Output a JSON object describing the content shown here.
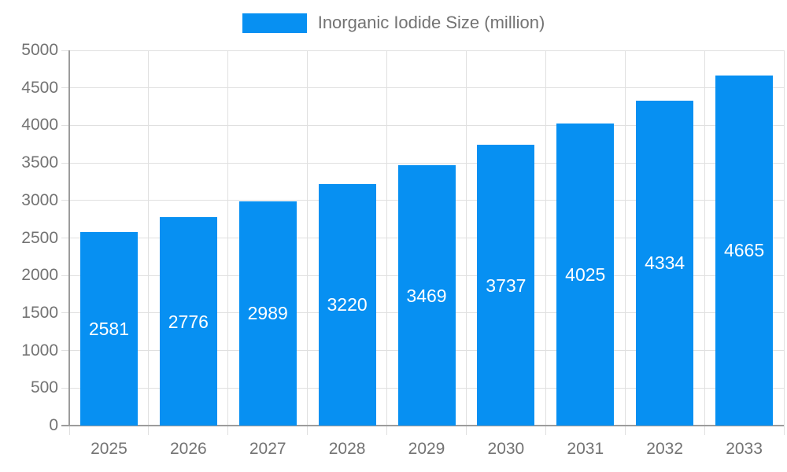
{
  "chart_data": {
    "type": "bar",
    "title": "",
    "legend": "Inorganic Iodide Size (million)",
    "legend_position": "top-center",
    "categories": [
      "2025",
      "2026",
      "2027",
      "2028",
      "2029",
      "2030",
      "2031",
      "2032",
      "2033"
    ],
    "values": [
      2581,
      2776,
      2989,
      3220,
      3469,
      3737,
      4025,
      4334,
      4665
    ],
    "xlabel": "",
    "ylabel": "",
    "ylim": [
      0,
      5000
    ],
    "ytick_step": 500,
    "yticks": [
      0,
      500,
      1000,
      1500,
      2000,
      2500,
      3000,
      3500,
      4000,
      4500,
      5000
    ],
    "grid": true,
    "value_labels_inside_bars": true,
    "colors": {
      "bar": "#0790f2",
      "value_label_text": "#ffffff",
      "axis_line": "#9c9c9c",
      "gridline": "#e0e0e0",
      "tick_label_text": "#737373",
      "background": "#ffffff"
    }
  }
}
